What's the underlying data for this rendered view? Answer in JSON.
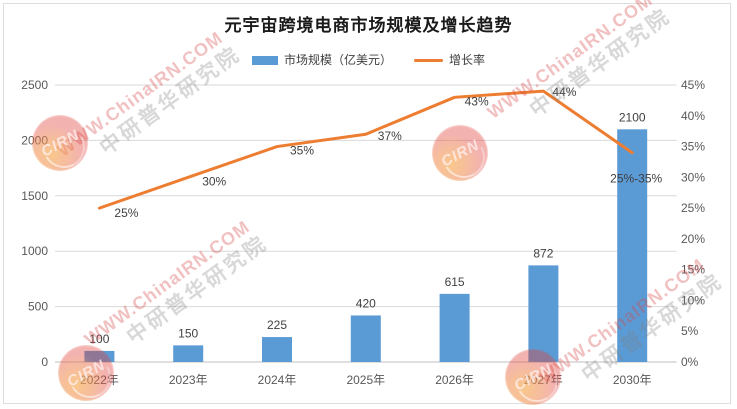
{
  "title": "元宇宙跨境电商市场规模及增长趋势",
  "legend": {
    "market_size": "市场规模（亿美元）",
    "growth_rate": "增长率"
  },
  "colors": {
    "bar": "#5B9BD5",
    "line": "#ED7D31",
    "grid": "#D9D9D9",
    "axis_line": "#BFBFBF",
    "axis_text": "#595959",
    "label_text": "#404040",
    "title_text": "#1a1a1a"
  },
  "chart_data": {
    "type": "bar",
    "subtype": "combo-bar-line",
    "title": "元宇宙跨境电商市场规模及增长趋势",
    "categories": [
      "2022年",
      "2023年",
      "2024年",
      "2025年",
      "2026年",
      "2027年",
      "2030年"
    ],
    "series": [
      {
        "name": "市场规模（亿美元）",
        "type": "bar",
        "axis": "left",
        "values": [
          100,
          150,
          225,
          420,
          615,
          872,
          2100
        ],
        "labels": [
          "100",
          "150",
          "225",
          "420",
          "615",
          "872",
          "2100"
        ]
      },
      {
        "name": "增长率",
        "type": "line",
        "axis": "right",
        "values": [
          25,
          30,
          35,
          37,
          43,
          44,
          34
        ],
        "labels": [
          "25%",
          "30%",
          "35%",
          "37%",
          "43%",
          "44%",
          "25%-35%"
        ]
      }
    ],
    "left_axis": {
      "min": 0,
      "max": 2500,
      "step": 500,
      "ticks": [
        "0",
        "500",
        "1000",
        "1500",
        "2000",
        "2500"
      ]
    },
    "right_axis": {
      "min": 0,
      "max": 45,
      "step": 5,
      "ticks": [
        "0%",
        "5%",
        "10%",
        "15%",
        "20%",
        "25%",
        "30%",
        "35%",
        "40%",
        "45%"
      ]
    },
    "legend_position": "top",
    "grid": "horizontal"
  },
  "watermark": {
    "latin": "WWW.ChinaIRN.COM",
    "cjk": "中研普华研究院",
    "badge": "CIRN"
  }
}
